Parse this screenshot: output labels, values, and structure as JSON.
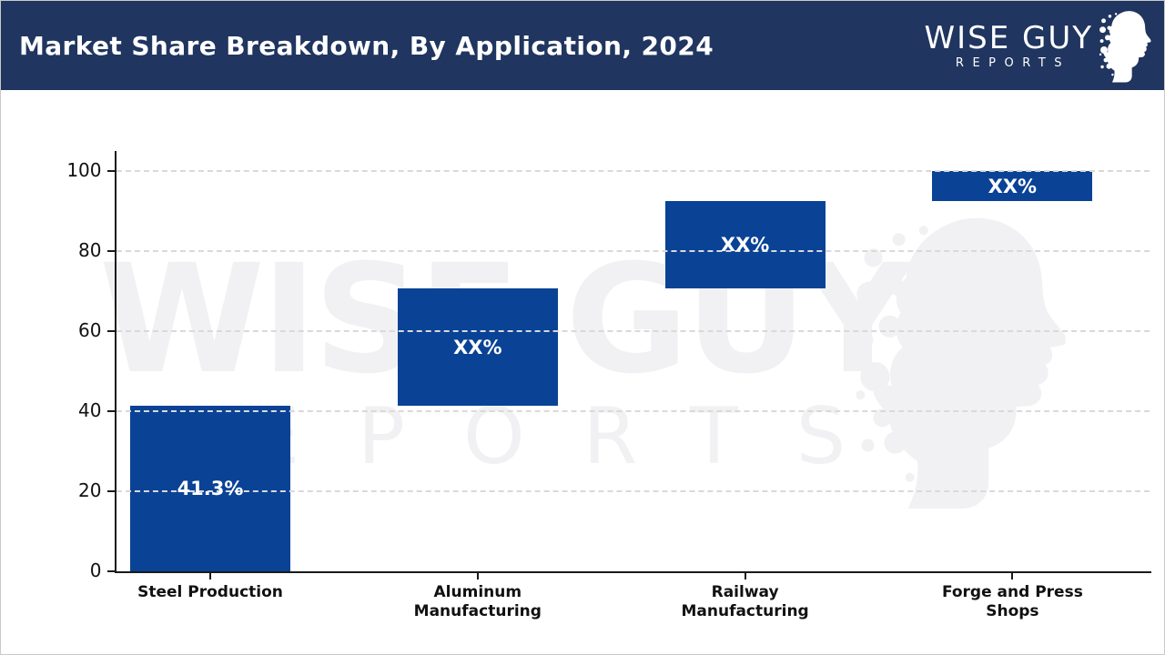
{
  "header": {
    "title": "Market Share Breakdown, By Application, 2024",
    "logo": {
      "line1": "WISE GUY",
      "line2": "REPORTS"
    }
  },
  "watermark": {
    "line1": "WISE GUY",
    "line2": "REPORTS",
    "face_icon": "face-profile-dots-icon"
  },
  "colors": {
    "header_bg": "#20355f",
    "bar": "#0a4296",
    "gridline": "#d9d9d9",
    "axis": "#1a1a1a",
    "bar_label": "#ffffff",
    "watermark": "#f1f1f3"
  },
  "chart_data": {
    "type": "bar",
    "subtype": "waterfall",
    "title": "Market Share Breakdown, By Application, 2024",
    "categories": [
      "Steel Production",
      "Aluminum Manufacturing",
      "Railway Manufacturing",
      "Forge and Press Shops"
    ],
    "category_label_lines": [
      [
        "Steel Production"
      ],
      [
        "Aluminum",
        "Manufacturing"
      ],
      [
        "Railway",
        "Manufacturing"
      ],
      [
        "Forge and Press",
        "Shops"
      ]
    ],
    "segments": [
      {
        "category": "Steel Production",
        "start": 0,
        "end": 41.3,
        "label": "41.3%"
      },
      {
        "category": "Aluminum Manufacturing",
        "start": 41.3,
        "end": 70.7,
        "label": "XX%"
      },
      {
        "category": "Railway Manufacturing",
        "start": 70.7,
        "end": 92.5,
        "label": "XX%"
      },
      {
        "category": "Forge and Press Shops",
        "start": 92.5,
        "end": 100,
        "label": "XX%"
      }
    ],
    "xlabel": "",
    "ylabel": "",
    "ylim": [
      0,
      105
    ],
    "yticks": [
      0,
      20,
      40,
      60,
      80,
      100
    ],
    "grid": "horizontal-dashed-above-bars",
    "legend": "none"
  }
}
